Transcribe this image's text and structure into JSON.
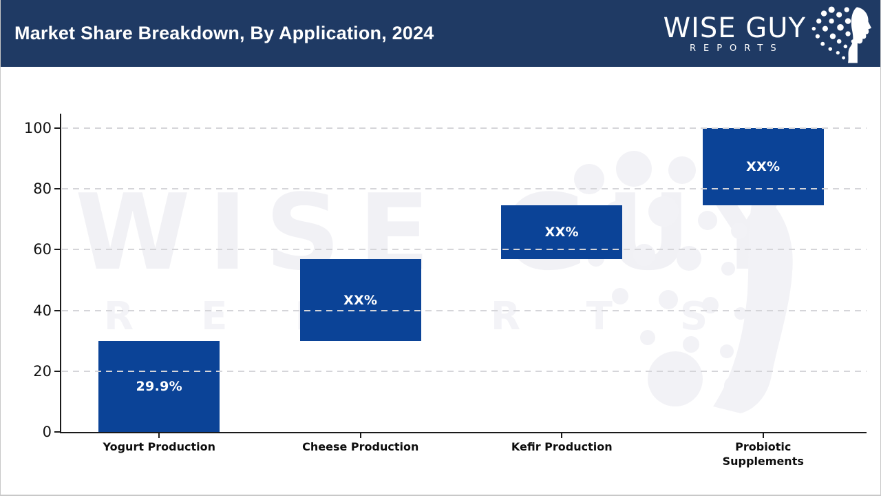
{
  "header": {
    "title": "Market Share Breakdown, By Application, 2024",
    "logo": {
      "line1": "WISE GUY",
      "line2": "REPORTS"
    }
  },
  "watermark": {
    "line1": "WISE GUY",
    "line2": "REPORTS"
  },
  "colors": {
    "header_bg": "#1f3a64",
    "bar": "#0b4397",
    "bar_label": "#ffffff",
    "grid": "#d5d5d9",
    "axis": "#1a1a1a",
    "watermark": "#f1f1f5"
  },
  "chart_data": {
    "type": "bar",
    "subtype": "waterfall",
    "title": "Market Share Breakdown, By Application, 2024",
    "xlabel": "",
    "ylabel": "",
    "ylim": [
      0,
      100
    ],
    "yticks": [
      0,
      20,
      40,
      60,
      80,
      100
    ],
    "grid": "horizontal-dashed",
    "legend": "none",
    "categories": [
      "Yogurt Production",
      "Cheese Production",
      "Kefir Production",
      "Probiotic Supplements"
    ],
    "segments": [
      {
        "category": "Yogurt Production",
        "start": 0,
        "end": 29.9,
        "increment": 29.9,
        "label": "29.9%"
      },
      {
        "category": "Cheese Production",
        "start": 29.9,
        "end": 56.9,
        "increment": 27.0,
        "label": "XX%"
      },
      {
        "category": "Kefir Production",
        "start": 56.9,
        "end": 74.5,
        "increment": 17.6,
        "label": "XX%"
      },
      {
        "category": "Probiotic Supplements",
        "start": 74.5,
        "end": 100,
        "increment": 25.5,
        "label": "XX%"
      }
    ]
  }
}
